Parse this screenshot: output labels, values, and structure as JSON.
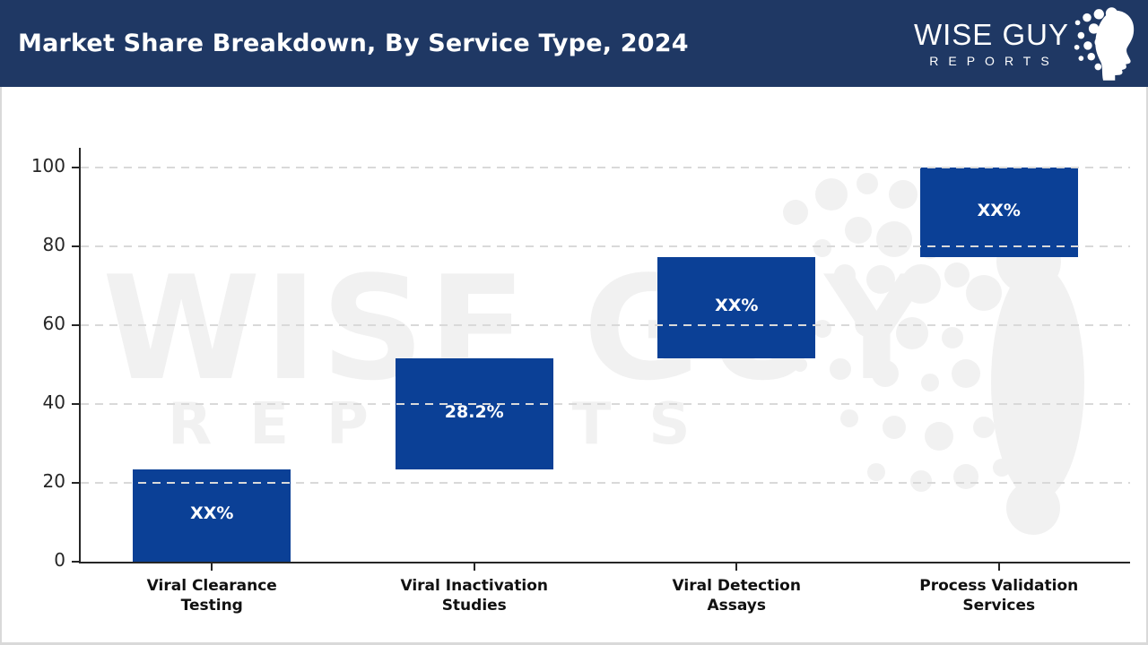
{
  "header": {
    "title": "Market Share Breakdown, By Service Type, 2024",
    "bg_color": "#1f3864",
    "logo": {
      "wordmark": "WISE GUY",
      "tagline": "REPORTS"
    }
  },
  "watermark": {
    "wordmark": "WISE GUY",
    "tagline": "REPORTS"
  },
  "chart_data": {
    "type": "bar",
    "variant": "waterfall",
    "title": "Market Share Breakdown, By Service Type, 2024",
    "categories": [
      "Viral Clearance\nTesting",
      "Viral Inactivation\nStudies",
      "Viral Detection\nAssays",
      "Process Validation\nServices"
    ],
    "bars": [
      {
        "label": "XX%",
        "start": 0,
        "end": 23.5
      },
      {
        "label": "28.2%",
        "start": 23.5,
        "end": 51.7
      },
      {
        "label": "XX%",
        "start": 51.7,
        "end": 77.3
      },
      {
        "label": "XX%",
        "start": 77.3,
        "end": 100
      }
    ],
    "yticks": [
      0,
      20,
      40,
      60,
      80,
      100
    ],
    "ylim": [
      0,
      100
    ],
    "xlabel": "",
    "ylabel": "",
    "legend": "none",
    "grid": "dashed-horizontal",
    "bar_color": "#0b4096",
    "bar_label_color": "#ffffff",
    "axis_color": "#262626",
    "grid_color": "#d9d9d9"
  }
}
